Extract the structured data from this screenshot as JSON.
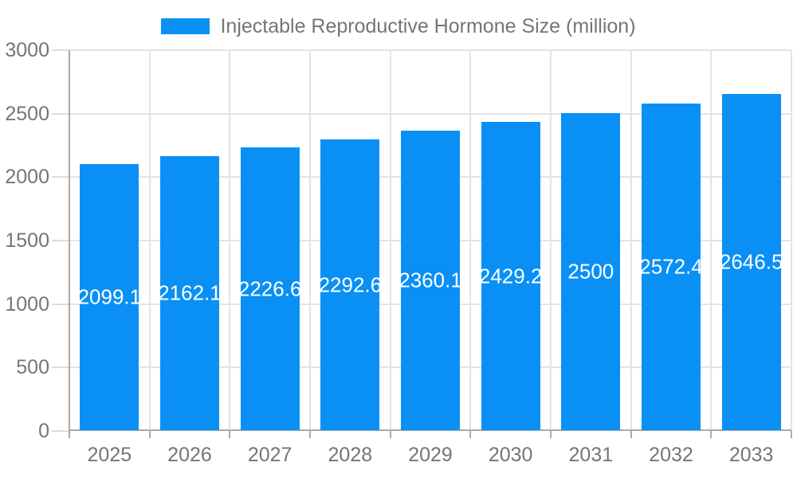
{
  "chart_data": {
    "type": "bar",
    "title": "Injectable Reproductive Hormone Size (million)",
    "categories": [
      "2025",
      "2026",
      "2027",
      "2028",
      "2029",
      "2030",
      "2031",
      "2032",
      "2033"
    ],
    "values": [
      2099.1,
      2162.1,
      2226.6,
      2292.6,
      2360.1,
      2429.2,
      2500,
      2572.4,
      2646.5
    ],
    "y_ticks": [
      0,
      500,
      1000,
      1500,
      2000,
      2500,
      3000
    ],
    "ylim": [
      0,
      3000
    ],
    "xlabel": "",
    "ylabel": "",
    "grid": true,
    "legend_position": "top-center",
    "colors": {
      "bar": "#0a90f5",
      "bar_label": "#ffffff",
      "axis_text": "#757575",
      "grid_line": "#e4e4e4",
      "axis_line": "#a9a9a9",
      "y_tick": "#dcdcdc",
      "x_tick": "#ababab",
      "background": "#ffffff"
    }
  }
}
